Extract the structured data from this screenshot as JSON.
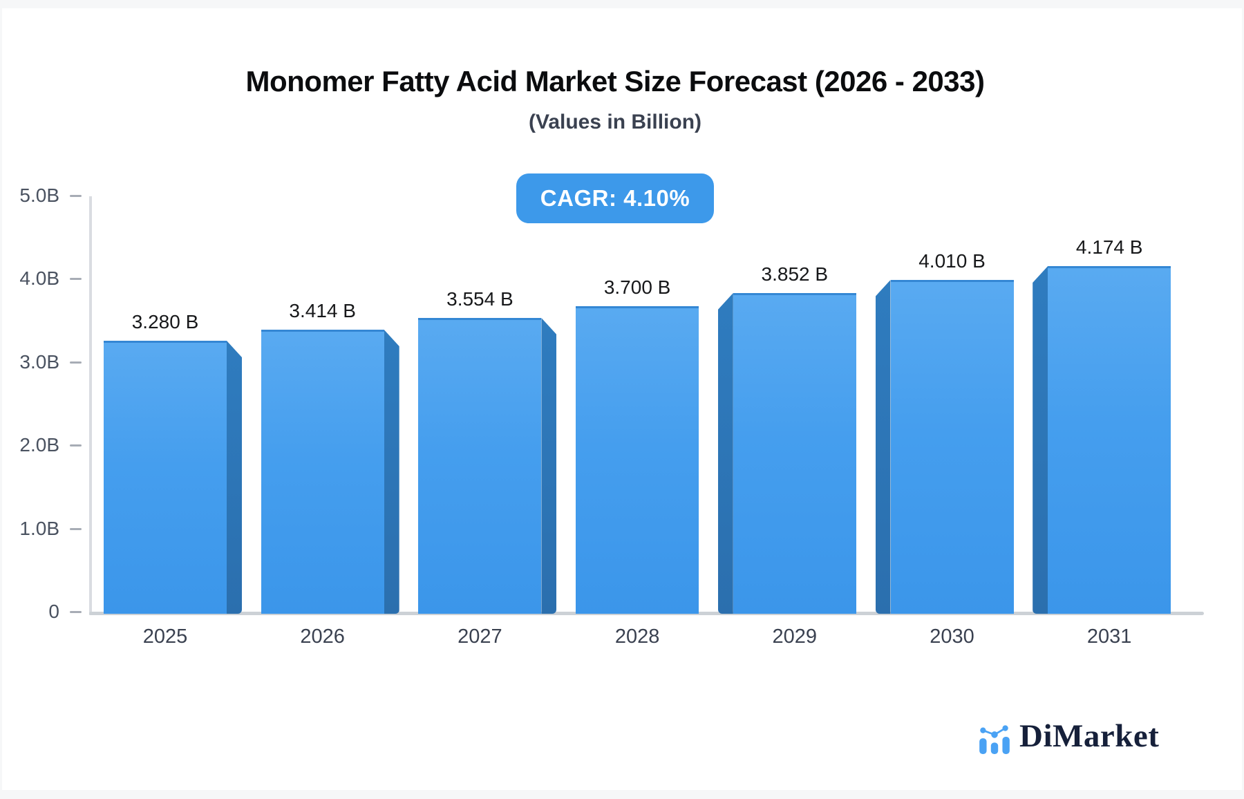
{
  "header": {
    "title": "Monomer Fatty Acid Market Size Forecast (2026 - 2033)",
    "subtitle": "(Values in Billion)",
    "cagr_badge": "CAGR: 4.10%"
  },
  "chart_data": {
    "type": "bar",
    "title": "Monomer Fatty Acid Market Size Forecast (2026 - 2033)",
    "subtitle": "(Values in Billion)",
    "cagr_percent": "4.10%",
    "unit": "Billion",
    "categories": [
      "2025",
      "2026",
      "2027",
      "2028",
      "2029",
      "2030",
      "2031"
    ],
    "values": [
      3.28,
      3.414,
      3.554,
      3.7,
      3.852,
      4.01,
      4.174
    ],
    "value_labels": [
      "3.280 B",
      "3.414 B",
      "3.554 B",
      "3.700 B",
      "3.852 B",
      "4.010 B",
      "4.174 B"
    ],
    "ylim": [
      0,
      5.0
    ],
    "yticks": [
      {
        "label": "5.0B",
        "value": 5.0
      },
      {
        "label": "4.0B",
        "value": 4.0
      },
      {
        "label": "3.0B",
        "value": 3.0
      },
      {
        "label": "2.0B",
        "value": 2.0
      },
      {
        "label": "1.0B",
        "value": 1.0
      },
      {
        "label": "0",
        "value": 0
      }
    ],
    "grid": false,
    "legend": false,
    "colors": {
      "bar_face_top": "#59aaf1",
      "bar_face_bottom": "#3b96ea",
      "bar_side": "#2b6fae",
      "badge_bg": "#3d99ea",
      "axis_line": "#d9dce1",
      "baseline": "#ccd1d6",
      "logo_blue": "#4aa2f4",
      "logo_navy": "#16203a"
    }
  },
  "branding": {
    "logo_text": "DiMarket",
    "logo_icon": "mini-bar-chart-icon"
  }
}
